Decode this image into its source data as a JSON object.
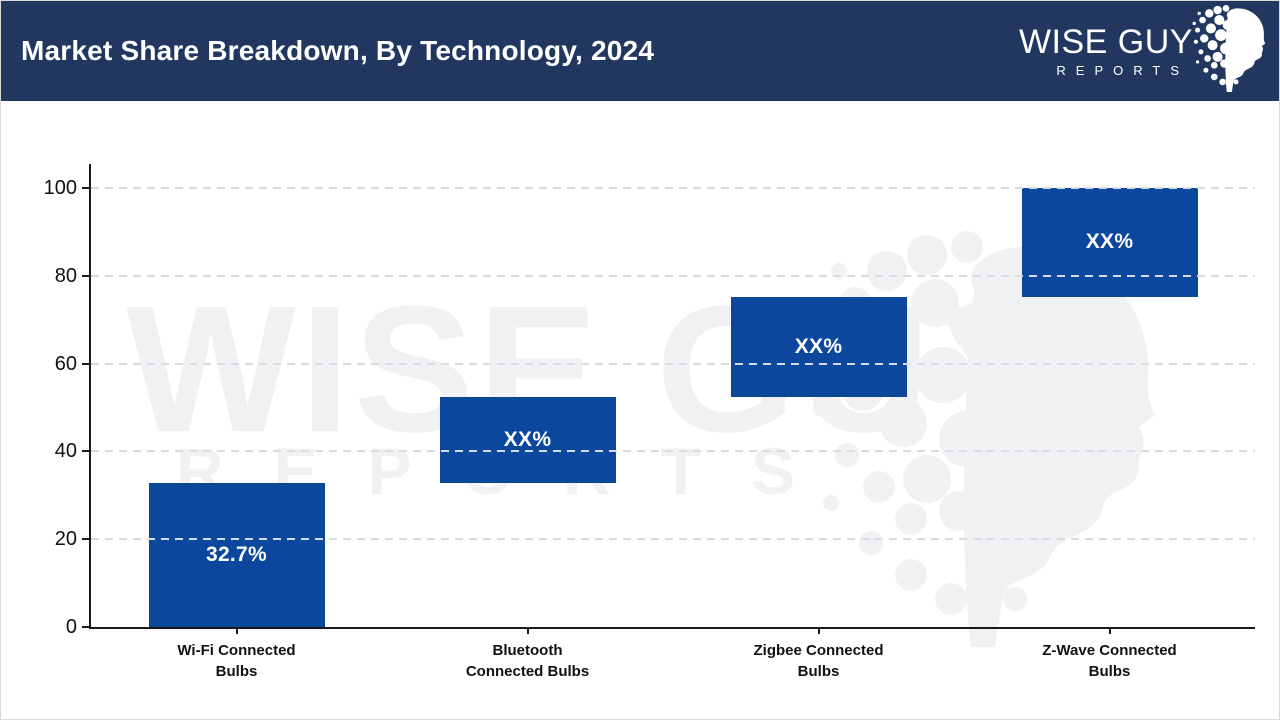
{
  "header": {
    "title": "Market Share Breakdown, By Technology, 2024",
    "bg_color": "#213760",
    "logo": {
      "line1": "WISE GUY",
      "line2": "REPORTS"
    }
  },
  "watermark": {
    "line1": "WISE GUY",
    "line2": "REPORTS"
  },
  "chart_data": {
    "type": "bar",
    "subtype": "waterfall",
    "title": "Market Share Breakdown, By Technology, 2024",
    "categories": [
      "Wi-Fi Connected\nBulbs",
      "Bluetooth\nConnected Bulbs",
      "Zigbee Connected\nBulbs",
      "Z-Wave Connected\nBulbs"
    ],
    "bars": [
      {
        "label": "32.7%",
        "start": 0,
        "end": 32.7,
        "value": 32.7
      },
      {
        "label": "XX%",
        "start": 32.7,
        "end": 52.5,
        "value": 19.8
      },
      {
        "label": "XX%",
        "start": 52.5,
        "end": 75.2,
        "value": 22.7
      },
      {
        "label": "XX%",
        "start": 75.2,
        "end": 100,
        "value": 24.8
      }
    ],
    "y_ticks": [
      0,
      20,
      40,
      60,
      80,
      100
    ],
    "ylim": [
      0,
      100
    ],
    "xlabel": "",
    "ylabel": "",
    "bar_color": "#0c479e",
    "grid": "dashed-horizontal",
    "legend": "none"
  }
}
